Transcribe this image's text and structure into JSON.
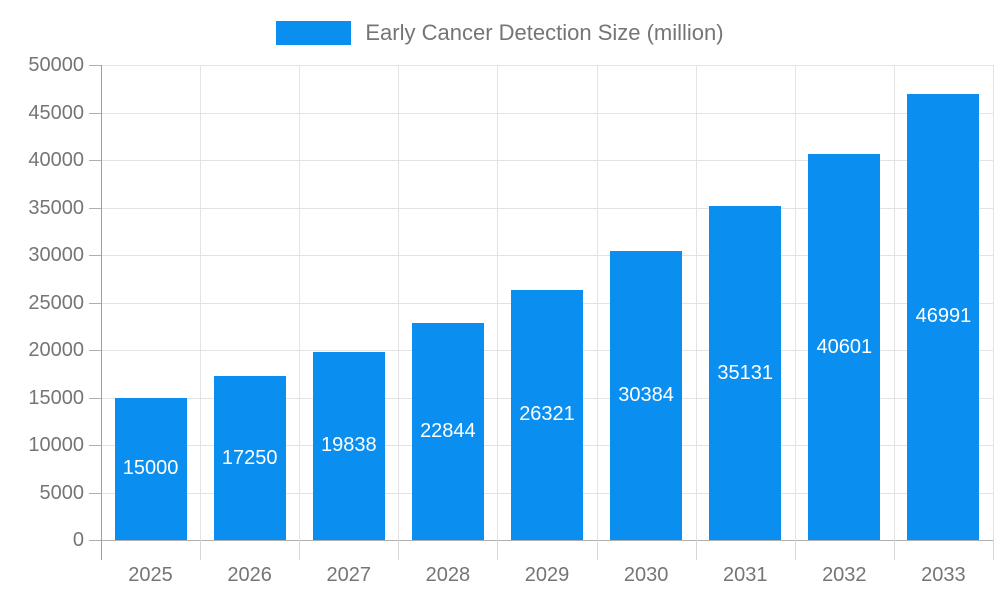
{
  "chart_data": {
    "type": "bar",
    "title": "Early Cancer Detection Size (million)",
    "categories": [
      "2025",
      "2026",
      "2027",
      "2028",
      "2029",
      "2030",
      "2031",
      "2032",
      "2033"
    ],
    "values": [
      15000,
      17250,
      19838,
      22844,
      26321,
      30384,
      35131,
      40601,
      46991
    ],
    "xlabel": "",
    "ylabel": "",
    "ylim": [
      0,
      50000
    ],
    "ytick_step": 5000,
    "ytick_labels": [
      "0",
      "5000",
      "10000",
      "15000",
      "20000",
      "25000",
      "30000",
      "35000",
      "40000",
      "45000",
      "50000"
    ],
    "grid": true,
    "legend_position": "top",
    "bar_color": "#0a8ff0",
    "bar_label_color": "#ffffff",
    "axis_text_color": "#757575",
    "grid_color": "#e3e3e3",
    "axis_line_color": "#9e9e9e",
    "baseline_color": "#b0b0b0"
  }
}
